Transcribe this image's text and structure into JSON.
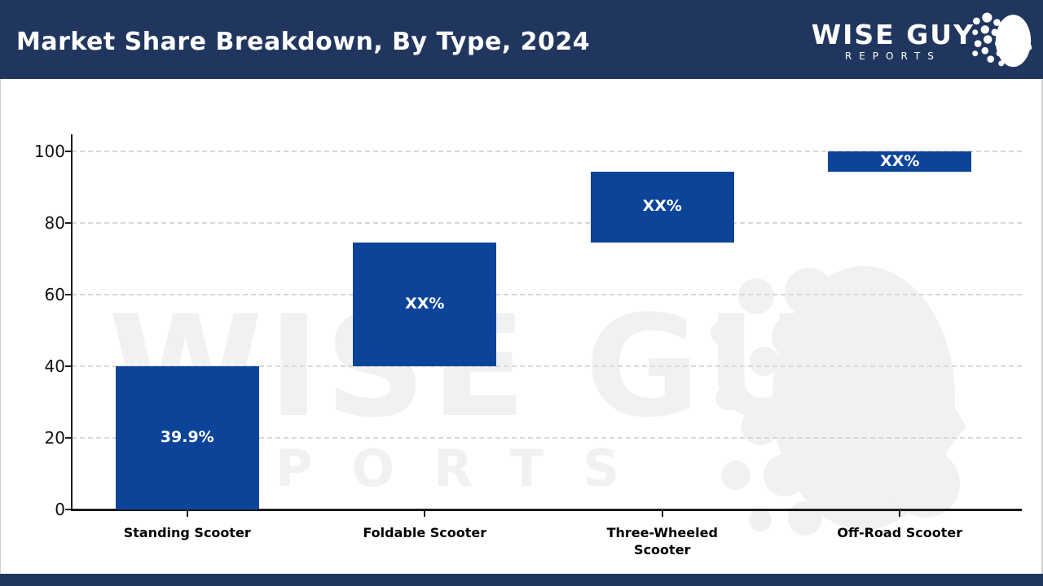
{
  "header": {
    "title": "Market Share Breakdown, By Type, 2024",
    "bg_color": "#21365f",
    "logo": {
      "line1": "WISE GUY",
      "line2": "REPORTS"
    }
  },
  "footer": {
    "bg_color": "#21365f"
  },
  "watermark": {
    "line1": "WISE GUY",
    "line2": "REPORTS",
    "color": "#f0f1f3"
  },
  "chart_data": {
    "type": "bar",
    "subtype": "stacked-waterfall",
    "title": "Market Share Breakdown, By Type, 2024",
    "categories": [
      "Standing Scooter",
      "Foldable Scooter",
      "Three-Wheeled Scooter",
      "Off-Road Scooter"
    ],
    "segments": [
      {
        "category": "Standing Scooter",
        "label": "39.9%",
        "start": 0,
        "end": 39.9
      },
      {
        "category": "Foldable Scooter",
        "label": "XX%",
        "start": 39.9,
        "end": 74.6
      },
      {
        "category": "Three-Wheeled Scooter",
        "label": "XX%",
        "start": 74.6,
        "end": 94.3
      },
      {
        "category": "Off-Road Scooter",
        "label": "XX%",
        "start": 94.3,
        "end": 100
      }
    ],
    "yticks": [
      0,
      20,
      40,
      60,
      80,
      100
    ],
    "ylim": [
      0,
      104.8
    ],
    "xlabel": "",
    "ylabel": "",
    "grid": "horizontal-dashed",
    "legend": "none",
    "bar_color": "#0c4499",
    "bar_label_color": "#ffffff",
    "axis_color": "#1c1c1c",
    "gridline_color": "#d8d8d8"
  }
}
